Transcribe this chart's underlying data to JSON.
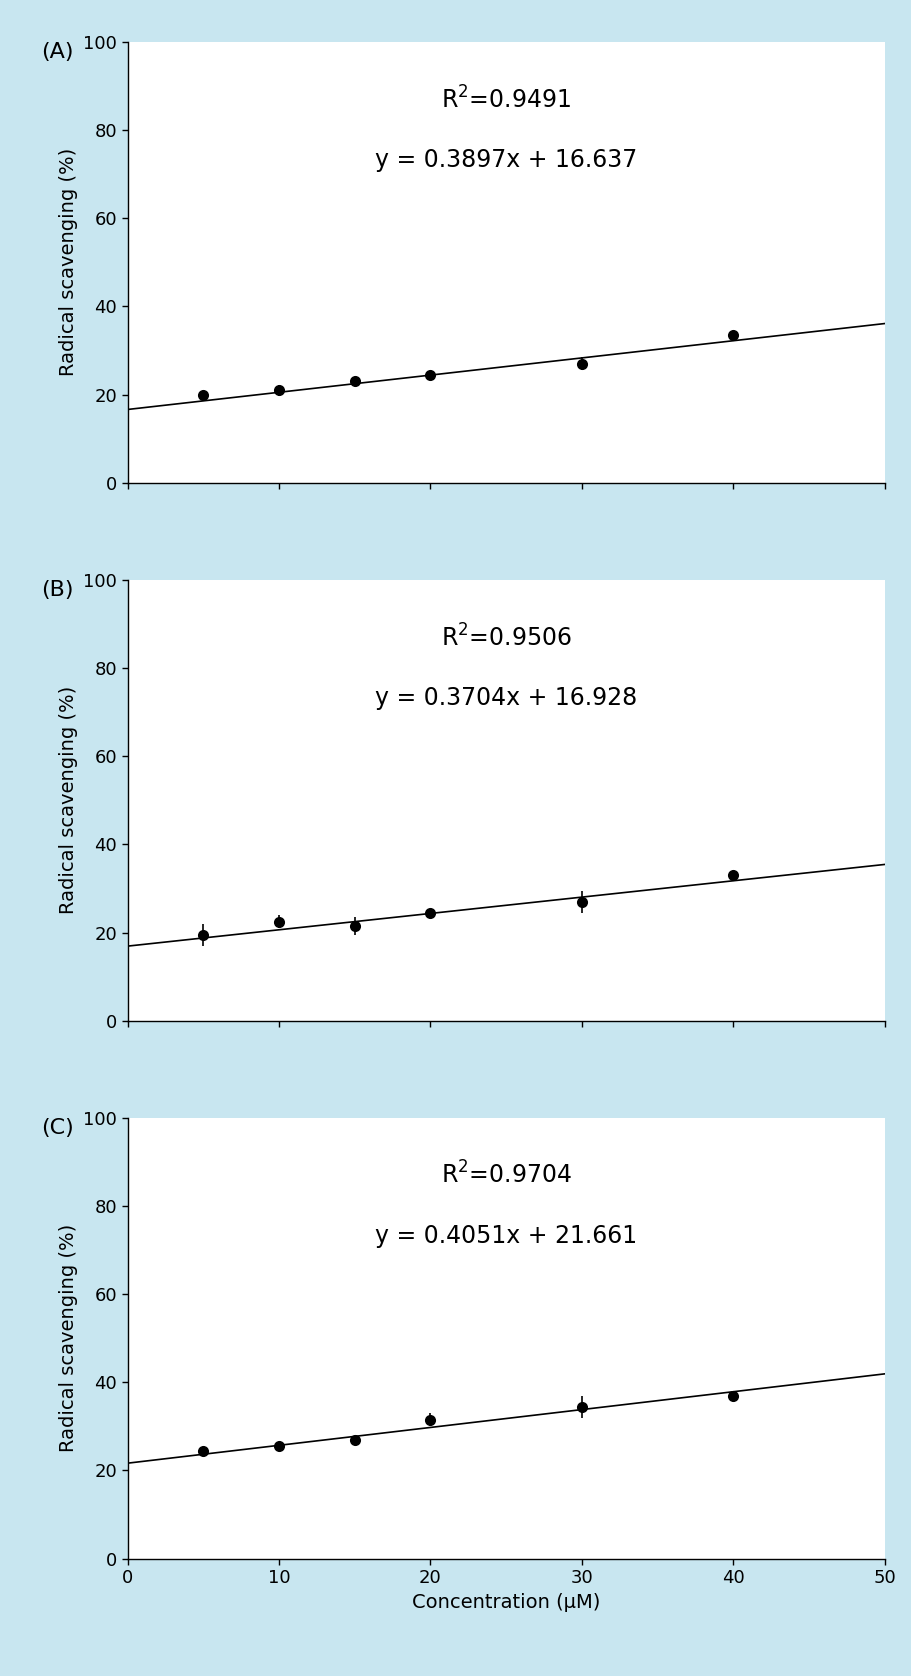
{
  "panels": [
    {
      "label": "(A)",
      "r2_text": "R$^2$=0.9491",
      "eq": "y = 0.3897x + 16.637",
      "slope": 0.3897,
      "intercept": 16.637,
      "x": [
        5,
        10,
        15,
        20,
        30,
        40
      ],
      "y": [
        20.0,
        21.0,
        23.0,
        24.5,
        27.0,
        33.5
      ],
      "yerr": [
        0.3,
        1.2,
        0.8,
        0.5,
        1.5,
        0.8
      ]
    },
    {
      "label": "(B)",
      "r2_text": "R$^2$=0.9506",
      "eq": "y = 0.3704x + 16.928",
      "slope": 0.3704,
      "intercept": 16.928,
      "x": [
        5,
        10,
        15,
        20,
        30,
        40
      ],
      "y": [
        19.5,
        22.5,
        21.5,
        24.5,
        27.0,
        33.0
      ],
      "yerr": [
        2.5,
        1.5,
        2.0,
        0.5,
        2.5,
        1.0
      ]
    },
    {
      "label": "(C)",
      "r2_text": "R$^2$=0.9704",
      "eq": "y = 0.4051x + 21.661",
      "slope": 0.4051,
      "intercept": 21.661,
      "x": [
        5,
        10,
        15,
        20,
        30,
        40
      ],
      "y": [
        24.5,
        25.5,
        27.0,
        31.5,
        34.5,
        37.0
      ],
      "yerr": [
        0.8,
        0.5,
        0.5,
        1.5,
        2.5,
        0.5
      ]
    }
  ],
  "xlabel": "Concentration (μM)",
  "ylabel": "Radical scavenging (%)",
  "xlim": [
    0,
    50
  ],
  "ylim": [
    0,
    100
  ],
  "xticks": [
    0,
    10,
    20,
    30,
    40,
    50
  ],
  "yticks": [
    0,
    20,
    40,
    60,
    80,
    100
  ],
  "line_color": "#000000",
  "marker_color": "#000000",
  "background_color": "#c8e6f0",
  "plot_bg": "#ffffff",
  "annotation_fontsize": 17,
  "label_fontsize": 14,
  "tick_fontsize": 13,
  "panel_label_fontsize": 16
}
